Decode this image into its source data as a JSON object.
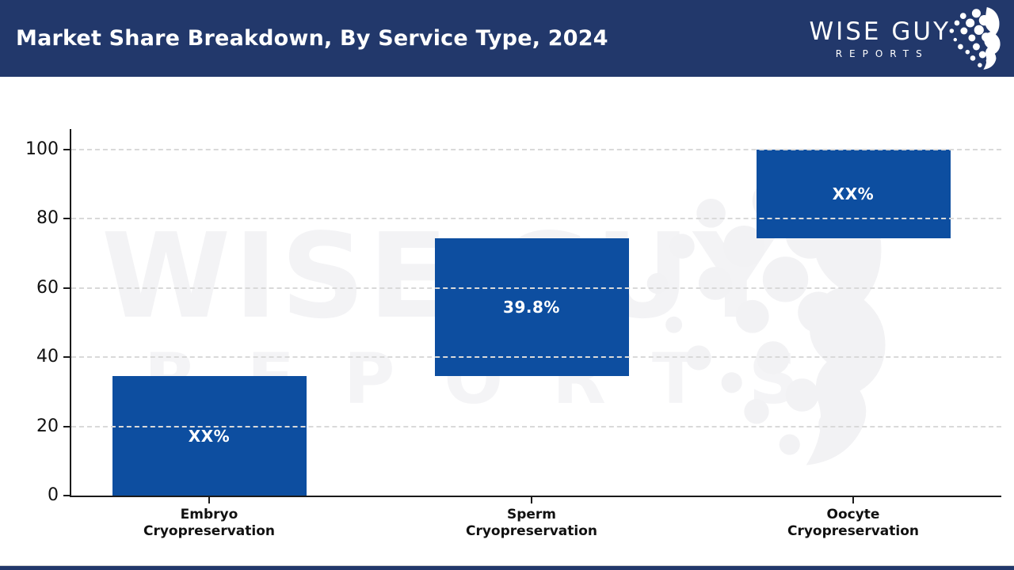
{
  "header": {
    "title": "Market Share Breakdown, By Service Type, 2024",
    "logo": {
      "brand": "WISE GUY",
      "sub": "REPORTS"
    }
  },
  "watermark": {
    "brand": "WISE GUY",
    "sub": "REPORTS"
  },
  "colors": {
    "header_background": "#22386b",
    "bar_blue": "#0d4ea0",
    "grid_gray": "#d9d9d9",
    "footer_navy": "#22386b"
  },
  "chart_data": {
    "type": "bar",
    "variant": "waterfall-breakdown",
    "title": "Market Share Breakdown, By Service Type, 2024",
    "categories": [
      {
        "name": "Embryo Cryopreservation",
        "line1": "Embryo",
        "line2": "Cryopreservation"
      },
      {
        "name": "Sperm Cryopreservation",
        "line1": "Sperm",
        "line2": "Cryopreservation"
      },
      {
        "name": "Oocyte Cryopreservation",
        "line1": "Oocyte",
        "line2": "Cryopreservation"
      }
    ],
    "segments": [
      {
        "category": "Embryo Cryopreservation",
        "start": 0,
        "end": 34.5,
        "value_label": "XX%"
      },
      {
        "category": "Sperm Cryopreservation",
        "start": 34.5,
        "end": 74.3,
        "value_label": "39.8%"
      },
      {
        "category": "Oocyte Cryopreservation",
        "start": 74.3,
        "end": 100,
        "value_label": "XX%"
      }
    ],
    "yticks": [
      0,
      20,
      40,
      60,
      80,
      100
    ],
    "ylim": [
      0,
      105
    ],
    "xlabel": "",
    "ylabel": "",
    "grid": "dashed-horizontal",
    "legend": false,
    "bar_color": "#0d4ea0",
    "bar_label_color": "#ffffff"
  }
}
